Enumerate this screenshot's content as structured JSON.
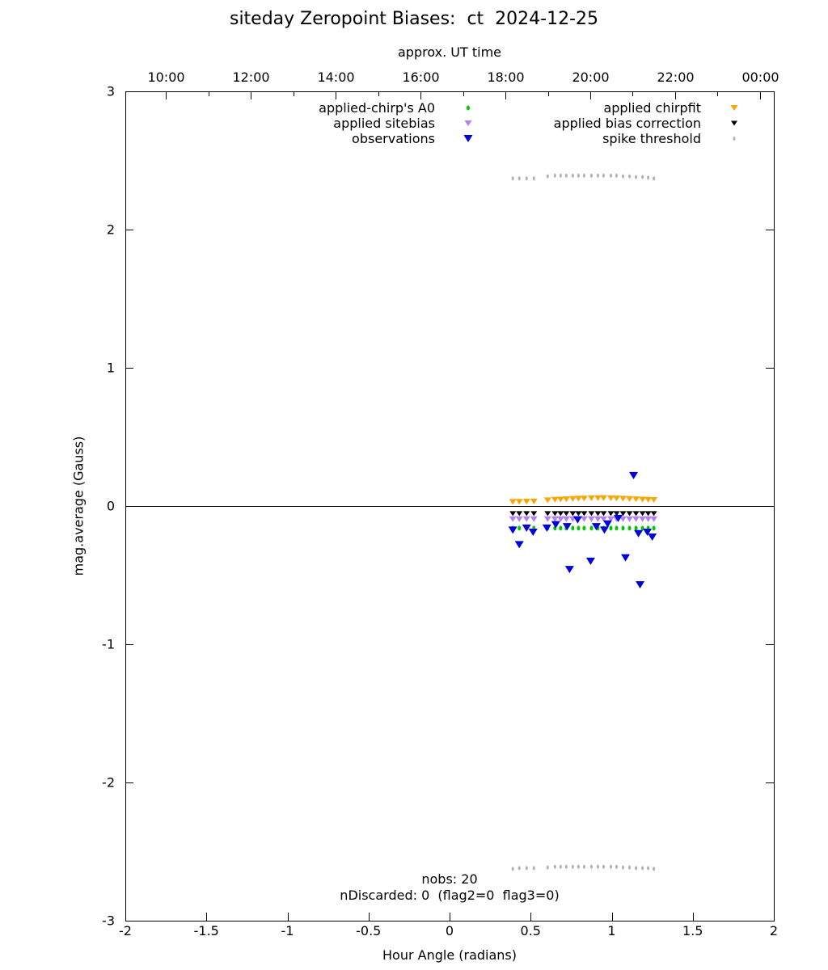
{
  "page": {
    "background": "#ffffff"
  },
  "title": "siteday Zeropoint Biases:  ct  2024-12-25",
  "annotations": {
    "nobs": "nobs: 20",
    "ndiscarded": "nDiscarded: 0  (flag2=0  flag3=0)"
  },
  "chart_data": {
    "type": "scatter",
    "title": "siteday Zeropoint Biases:  ct  2024-12-25",
    "xlabel": "Hour Angle (radians)",
    "x2label": "approx. UT time",
    "ylabel": "mag.average (Gauss)",
    "xlim": [
      -2,
      2
    ],
    "ylim": [
      -3,
      3
    ],
    "grid": false,
    "zero_line": true,
    "x_ticks": {
      "values": [
        -2,
        -1.5,
        -1,
        -0.5,
        0,
        0.5,
        1,
        1.5,
        2
      ],
      "labels": [
        "-2",
        "-1.5",
        "-1",
        "-0.5",
        "0",
        "0.5",
        "1",
        "1.5",
        "2"
      ]
    },
    "y_ticks": {
      "values": [
        3,
        2,
        1,
        0,
        -1,
        -2,
        -3
      ],
      "labels": [
        "3",
        "2",
        "1",
        "0",
        "-1",
        "-2",
        "-3"
      ]
    },
    "x2_ticks": [
      {
        "hour": 10,
        "label": "10:00"
      },
      {
        "hour": 11,
        "label": ""
      },
      {
        "hour": 12,
        "label": "12:00"
      },
      {
        "hour": 13,
        "label": ""
      },
      {
        "hour": 14,
        "label": "14:00"
      },
      {
        "hour": 15,
        "label": ""
      },
      {
        "hour": 16,
        "label": "16:00"
      },
      {
        "hour": 17,
        "label": ""
      },
      {
        "hour": 18,
        "label": "18:00"
      },
      {
        "hour": 19,
        "label": ""
      },
      {
        "hour": 20,
        "label": "20:00"
      },
      {
        "hour": 21,
        "label": ""
      },
      {
        "hour": 22,
        "label": "22:00"
      },
      {
        "hour": 23,
        "label": ""
      },
      {
        "hour": 24,
        "label": "00:00"
      }
    ],
    "x2_map": {
      "ha_midnight": 1.915,
      "ha_per_hour": 0.2618
    },
    "draw_order": [
      "chirp_a0",
      "sitebias",
      "chirpfit",
      "bias_correction",
      "spike",
      "observations"
    ],
    "series": [
      {
        "key": "chirp_a0",
        "name": "applied-chirp's A0",
        "marker": "dot",
        "color": "#00c800",
        "marker_size": [
          4,
          6
        ],
        "points": [
          [
            0.39,
            -0.16
          ],
          [
            0.43,
            -0.16
          ],
          [
            0.475,
            -0.16
          ],
          [
            0.52,
            -0.16
          ],
          [
            0.605,
            -0.16
          ],
          [
            0.65,
            -0.16
          ],
          [
            0.685,
            -0.16
          ],
          [
            0.72,
            -0.16
          ],
          [
            0.76,
            -0.16
          ],
          [
            0.795,
            -0.16
          ],
          [
            0.83,
            -0.16
          ],
          [
            0.875,
            -0.16
          ],
          [
            0.915,
            -0.16
          ],
          [
            0.95,
            -0.16
          ],
          [
            0.995,
            -0.16
          ],
          [
            1.03,
            -0.16
          ],
          [
            1.07,
            -0.16
          ],
          [
            1.11,
            -0.16
          ],
          [
            1.15,
            -0.16
          ],
          [
            1.19,
            -0.16
          ],
          [
            1.225,
            -0.16
          ],
          [
            1.26,
            -0.16
          ]
        ]
      },
      {
        "key": "sitebias",
        "name": "applied sitebias",
        "marker": "triangle",
        "color": "#b380f0",
        "marker_size": [
          9,
          7
        ],
        "points": [
          [
            0.39,
            -0.095
          ],
          [
            0.43,
            -0.095
          ],
          [
            0.475,
            -0.095
          ],
          [
            0.52,
            -0.095
          ],
          [
            0.605,
            -0.095
          ],
          [
            0.65,
            -0.095
          ],
          [
            0.685,
            -0.095
          ],
          [
            0.72,
            -0.095
          ],
          [
            0.76,
            -0.095
          ],
          [
            0.795,
            -0.095
          ],
          [
            0.83,
            -0.095
          ],
          [
            0.875,
            -0.095
          ],
          [
            0.915,
            -0.095
          ],
          [
            0.95,
            -0.095
          ],
          [
            0.995,
            -0.095
          ],
          [
            1.03,
            -0.095
          ],
          [
            1.07,
            -0.095
          ],
          [
            1.11,
            -0.095
          ],
          [
            1.15,
            -0.095
          ],
          [
            1.19,
            -0.095
          ],
          [
            1.225,
            -0.095
          ],
          [
            1.26,
            -0.095
          ]
        ]
      },
      {
        "key": "observations",
        "name": "observations",
        "marker": "triangle",
        "color": "#0000dd",
        "marker_size": [
          11,
          9
        ],
        "points": [
          [
            0.39,
            -0.175
          ],
          [
            0.43,
            -0.28
          ],
          [
            0.475,
            -0.16
          ],
          [
            0.515,
            -0.19
          ],
          [
            0.6,
            -0.16
          ],
          [
            0.655,
            -0.135
          ],
          [
            0.725,
            -0.15
          ],
          [
            0.74,
            -0.46
          ],
          [
            0.79,
            -0.1
          ],
          [
            0.87,
            -0.4
          ],
          [
            0.905,
            -0.15
          ],
          [
            0.955,
            -0.175
          ],
          [
            0.975,
            -0.13
          ],
          [
            1.04,
            -0.09
          ],
          [
            1.085,
            -0.375
          ],
          [
            1.135,
            0.22
          ],
          [
            1.165,
            -0.2
          ],
          [
            1.175,
            -0.57
          ],
          [
            1.22,
            -0.19
          ],
          [
            1.25,
            -0.225
          ]
        ]
      },
      {
        "key": "chirpfit",
        "name": "applied chirpfit",
        "marker": "triangle",
        "color": "#ffa500",
        "marker_size": [
          9,
          7
        ],
        "points": [
          [
            0.39,
            0.03
          ],
          [
            0.43,
            0.031
          ],
          [
            0.475,
            0.032
          ],
          [
            0.52,
            0.033
          ],
          [
            0.605,
            0.042
          ],
          [
            0.65,
            0.045
          ],
          [
            0.685,
            0.047
          ],
          [
            0.72,
            0.049
          ],
          [
            0.76,
            0.051
          ],
          [
            0.795,
            0.053
          ],
          [
            0.83,
            0.054
          ],
          [
            0.875,
            0.056
          ],
          [
            0.915,
            0.057
          ],
          [
            0.95,
            0.057
          ],
          [
            0.995,
            0.056
          ],
          [
            1.03,
            0.055
          ],
          [
            1.07,
            0.053
          ],
          [
            1.11,
            0.051
          ],
          [
            1.15,
            0.049
          ],
          [
            1.19,
            0.047
          ],
          [
            1.225,
            0.045
          ],
          [
            1.26,
            0.044
          ]
        ]
      },
      {
        "key": "bias_correction",
        "name": "applied bias correction",
        "marker": "triangle",
        "color": "#000000",
        "marker_size": [
          8,
          6
        ],
        "points": [
          [
            0.39,
            -0.055
          ],
          [
            0.43,
            -0.055
          ],
          [
            0.475,
            -0.055
          ],
          [
            0.52,
            -0.055
          ],
          [
            0.605,
            -0.055
          ],
          [
            0.65,
            -0.055
          ],
          [
            0.685,
            -0.055
          ],
          [
            0.72,
            -0.055
          ],
          [
            0.76,
            -0.055
          ],
          [
            0.795,
            -0.055
          ],
          [
            0.83,
            -0.055
          ],
          [
            0.875,
            -0.055
          ],
          [
            0.915,
            -0.055
          ],
          [
            0.95,
            -0.055
          ],
          [
            0.995,
            -0.055
          ],
          [
            1.03,
            -0.055
          ],
          [
            1.07,
            -0.055
          ],
          [
            1.11,
            -0.055
          ],
          [
            1.15,
            -0.055
          ],
          [
            1.19,
            -0.055
          ],
          [
            1.225,
            -0.055
          ],
          [
            1.26,
            -0.055
          ]
        ]
      },
      {
        "key": "spike",
        "name": "spike threshold",
        "marker": "dot",
        "color": "#b0b0b0",
        "marker_size": [
          3,
          5
        ],
        "points": [
          [
            0.39,
            2.37
          ],
          [
            0.43,
            2.37
          ],
          [
            0.475,
            2.37
          ],
          [
            0.52,
            2.37
          ],
          [
            0.605,
            2.385
          ],
          [
            0.65,
            2.39
          ],
          [
            0.685,
            2.39
          ],
          [
            0.72,
            2.39
          ],
          [
            0.76,
            2.39
          ],
          [
            0.795,
            2.39
          ],
          [
            0.83,
            2.39
          ],
          [
            0.875,
            2.39
          ],
          [
            0.915,
            2.39
          ],
          [
            0.95,
            2.39
          ],
          [
            0.995,
            2.39
          ],
          [
            1.03,
            2.39
          ],
          [
            1.07,
            2.385
          ],
          [
            1.11,
            2.385
          ],
          [
            1.15,
            2.38
          ],
          [
            1.19,
            2.38
          ],
          [
            1.225,
            2.375
          ],
          [
            1.26,
            2.37
          ],
          [
            0.39,
            -2.625
          ],
          [
            0.43,
            -2.62
          ],
          [
            0.475,
            -2.62
          ],
          [
            0.52,
            -2.62
          ],
          [
            0.605,
            -2.615
          ],
          [
            0.65,
            -2.61
          ],
          [
            0.685,
            -2.61
          ],
          [
            0.72,
            -2.61
          ],
          [
            0.76,
            -2.61
          ],
          [
            0.795,
            -2.61
          ],
          [
            0.83,
            -2.61
          ],
          [
            0.875,
            -2.61
          ],
          [
            0.915,
            -2.61
          ],
          [
            0.95,
            -2.61
          ],
          [
            0.995,
            -2.61
          ],
          [
            1.03,
            -2.61
          ],
          [
            1.07,
            -2.615
          ],
          [
            1.11,
            -2.615
          ],
          [
            1.15,
            -2.62
          ],
          [
            1.19,
            -2.62
          ],
          [
            1.225,
            -2.62
          ],
          [
            1.26,
            -2.625
          ]
        ]
      }
    ],
    "legend": {
      "position": "top-inside",
      "columns": [
        {
          "items": [
            {
              "label": "applied-chirp's A0",
              "series": "chirp_a0"
            },
            {
              "label": "applied sitebias",
              "series": "sitebias"
            },
            {
              "label": "observations",
              "series": "observations"
            }
          ]
        },
        {
          "items": [
            {
              "label": "applied chirpfit",
              "series": "chirpfit"
            },
            {
              "label": "applied bias correction",
              "series": "bias_correction"
            },
            {
              "label": "spike threshold",
              "series": "spike"
            }
          ]
        }
      ]
    }
  }
}
